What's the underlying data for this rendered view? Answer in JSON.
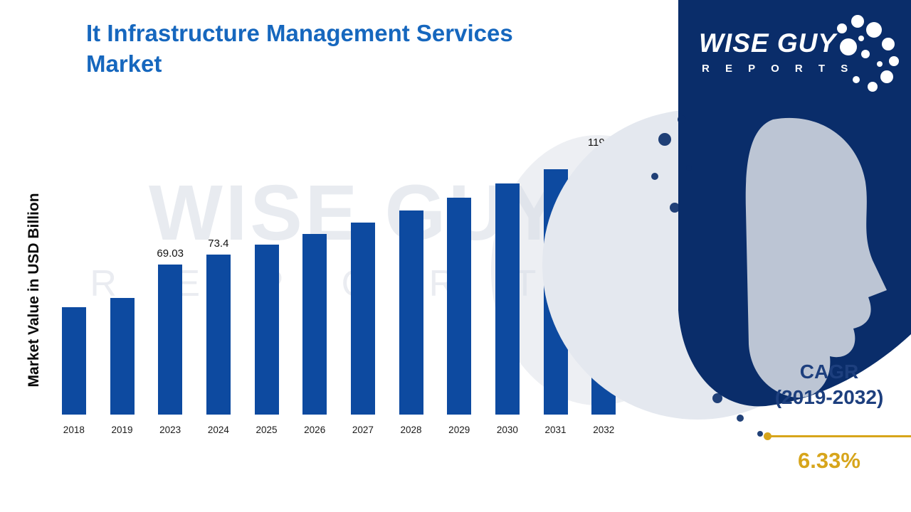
{
  "title": "It Infrastructure Management Services Market",
  "watermark": {
    "line1": "WISE GUY",
    "line2": "R E P O R T S"
  },
  "logo": {
    "line1": "WISE GUY",
    "line2": "R E P O R T S"
  },
  "cagr": {
    "label": "CAGR",
    "range": "(2019-2032)",
    "value": "6.33%"
  },
  "colors": {
    "bar": "#0d4aa0",
    "panel_navy": "#0a2d6a",
    "title_blue": "#1667be",
    "gold": "#d7a51b",
    "cagr_navy": "#1d3f7e",
    "gray_circle": "#e4e8ef",
    "face_gray": "#c6cdda",
    "watermark_gray": "#d9dee7"
  },
  "chart_data": {
    "type": "bar",
    "title": "It Infrastructure Management Services Market",
    "xlabel": "",
    "ylabel": "Market Value in USD Billion",
    "categories": [
      "2018",
      "2019",
      "2023",
      "2024",
      "2025",
      "2026",
      "2027",
      "2028",
      "2029",
      "2030",
      "2031",
      "2032"
    ],
    "values": [
      49.4,
      53.6,
      69.03,
      73.4,
      78.05,
      83.0,
      88.2,
      93.8,
      99.75,
      106.05,
      112.8,
      119.93
    ],
    "data_labels": [
      "",
      "",
      "69.03",
      "73.4",
      "",
      "",
      "",
      "",
      "",
      "",
      "",
      "119.93"
    ],
    "ylim": [
      0,
      130
    ],
    "grid": false,
    "legend": false,
    "bar_color": "#0d4aa0"
  }
}
